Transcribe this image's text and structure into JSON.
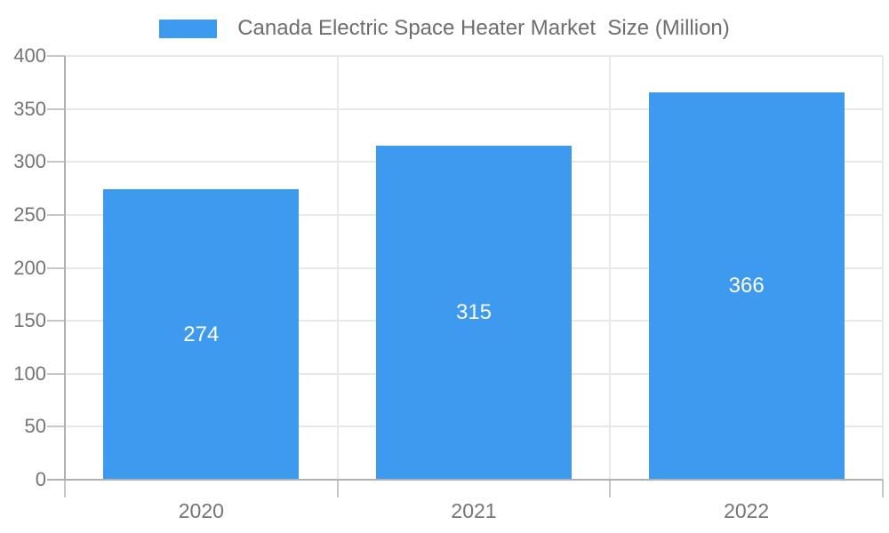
{
  "chart_data": {
    "type": "bar",
    "title": "",
    "legend": "Canada Electric Space Heater Market  Size (Million)",
    "legend_position": "top",
    "categories": [
      "2020",
      "2021",
      "2022"
    ],
    "series": [
      {
        "name": "Canada Electric Space Heater Market  Size (Million)",
        "values": [
          274,
          315,
          366
        ]
      }
    ],
    "value_labels": [
      "274",
      "315",
      "366"
    ],
    "xlabel": "",
    "ylabel": "",
    "ylim": [
      0,
      400
    ],
    "yticks": [
      0,
      50,
      100,
      150,
      200,
      250,
      300,
      350,
      400
    ],
    "grid": true,
    "colors": {
      "bar": "#3E9AEE",
      "grid": "#E8E8E8",
      "axis": "#B0B0B0",
      "tick": "#C6C6C6",
      "axis_text": "#757575",
      "legend_text": "#6E6E6E",
      "value_label": "#FFFFFF",
      "background": "#FFFFFF"
    }
  }
}
